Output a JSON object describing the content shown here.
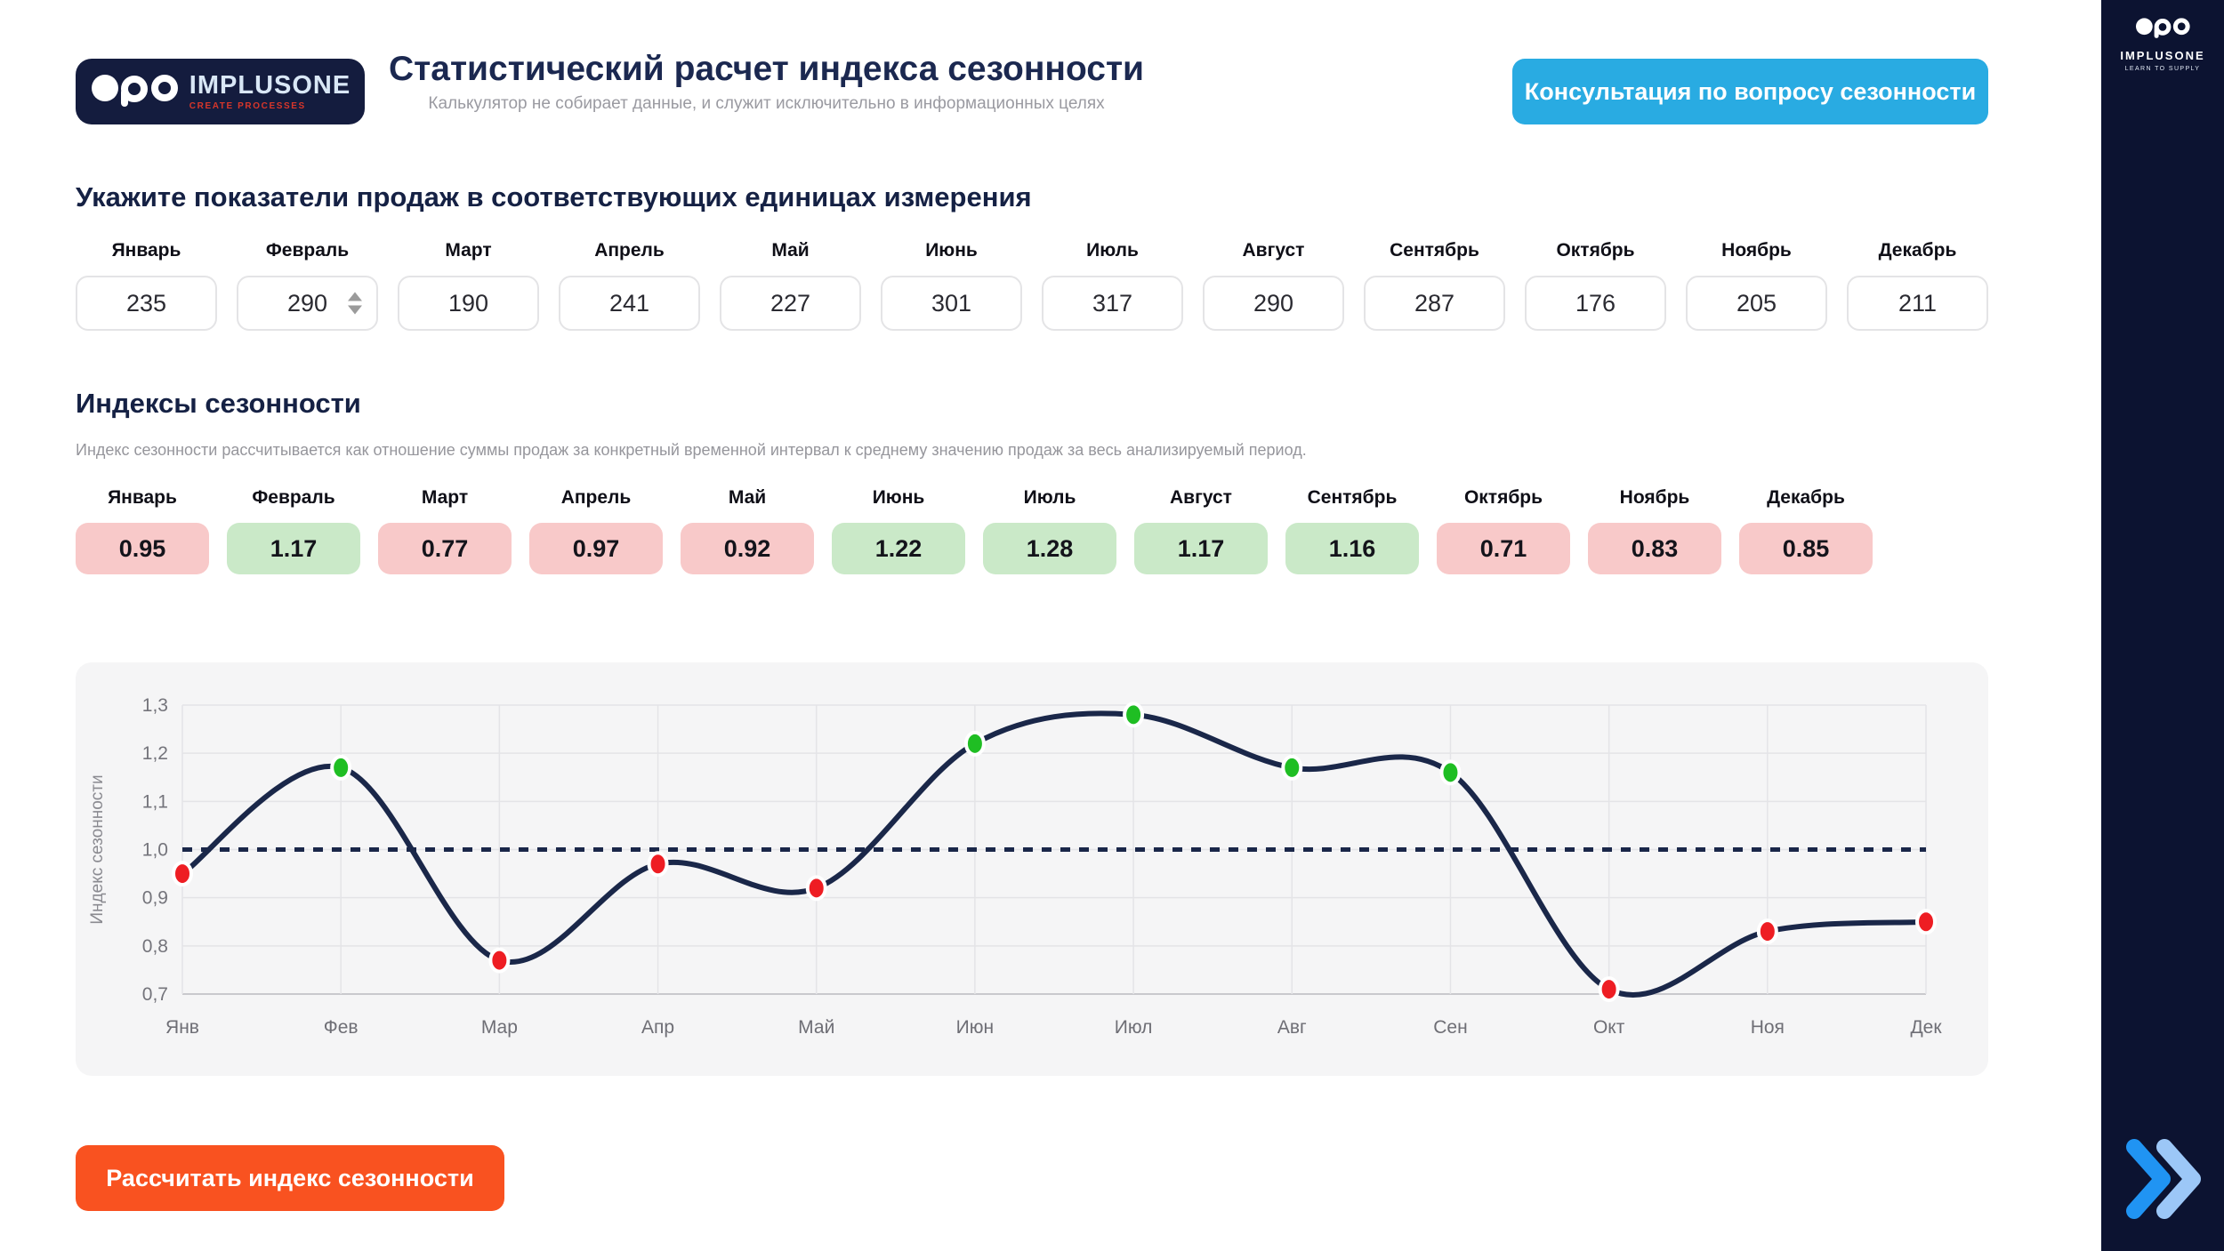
{
  "app": {
    "logo": {
      "name": "IMPLUSONE",
      "tagline": "CREATE PROCESSES"
    },
    "title": "Статистический расчет индекса сезонности",
    "subtitle": "Калькулятор не собирает данные, и служит исключительно в информационных целях",
    "consult_button": "Консультация по вопросу сезонности"
  },
  "sales_section": {
    "heading": "Укажите показатели продаж в соответствующих единицах измерения",
    "months": [
      "Январь",
      "Февраль",
      "Март",
      "Апрель",
      "Май",
      "Июнь",
      "Июль",
      "Август",
      "Сентябрь",
      "Октябрь",
      "Ноябрь",
      "Декабрь"
    ],
    "values": [
      "235",
      "290",
      "190",
      "241",
      "227",
      "301",
      "317",
      "290",
      "287",
      "176",
      "205",
      "211"
    ],
    "spinner_month_index": 1
  },
  "index_section": {
    "heading": "Индексы сезонности",
    "description": "Индекс сезонности рассчитывается как отношение суммы продаж за конкретный временной интервал к среднему значению продаж за весь анализируемый период.",
    "months": [
      "Январь",
      "Февраль",
      "Март",
      "Апрель",
      "Май",
      "Июнь",
      "Июль",
      "Август",
      "Сентябрь",
      "Октябрь",
      "Ноябрь",
      "Декабрь"
    ],
    "values": [
      "0.95",
      "1.17",
      "0.77",
      "0.97",
      "0.92",
      "1.22",
      "1.28",
      "1.17",
      "1.16",
      "0.71",
      "0.83",
      "0.85"
    ]
  },
  "chart_data": {
    "type": "line",
    "categories": [
      "Янв",
      "Фев",
      "Мар",
      "Апр",
      "Май",
      "Июн",
      "Июл",
      "Авг",
      "Сен",
      "Окт",
      "Ноя",
      "Дек"
    ],
    "values": [
      0.95,
      1.17,
      0.77,
      0.97,
      0.92,
      1.22,
      1.28,
      1.17,
      1.16,
      0.71,
      0.83,
      0.85
    ],
    "title": "",
    "xlabel": "",
    "ylabel": "Индекс сезонности",
    "ylim": [
      0.7,
      1.3
    ],
    "ytick_step": 0.1,
    "ytick_labels": [
      "0,7",
      "0,8",
      "0,9",
      "1,0",
      "1,1",
      "1,2",
      "1,3"
    ],
    "baseline": 1.0,
    "grid": true,
    "legend": false,
    "colors": {
      "line": "#1a2749",
      "baseline": "#1a2749",
      "point_above": "#1fbe23",
      "point_below": "#ee1d23",
      "grid": "#e4e4e7",
      "axis_line": "#c9c9cd",
      "tick_text": "#74747b",
      "axis_title": "#8a8a90"
    }
  },
  "calc_button": "Рассчитать индекс сезонности",
  "sidebar": {
    "logo_name": "IMPLUSONE",
    "logo_tagline": "LEARN TO SUPPLY",
    "chevron_colors": [
      "#2094f3",
      "#9cc7f7"
    ]
  }
}
